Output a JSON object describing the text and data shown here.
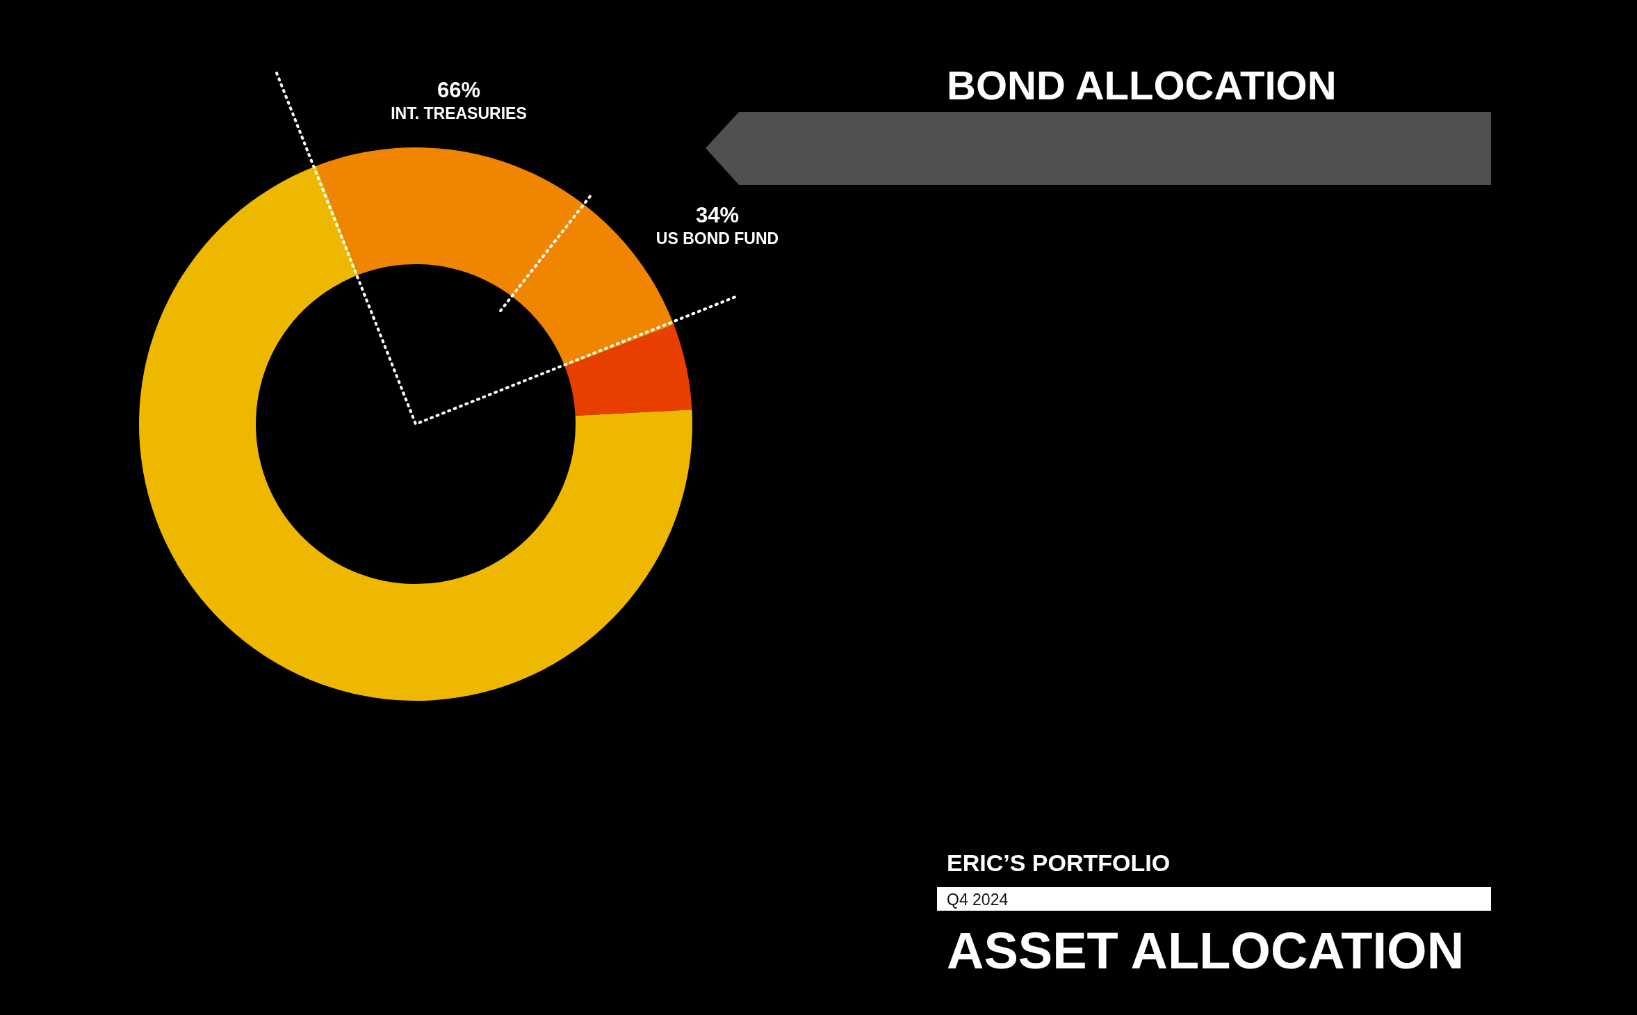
{
  "chart_data": {
    "type": "donut",
    "title": "ASSET ALLOCATION",
    "subtitle": "ERIC’S PORTFOLIO",
    "categories": [
      null,
      null,
      null
    ],
    "values": [
      25,
      5,
      70
    ],
    "colors": [
      "#ef8500",
      "#e83e00",
      "#eeb800"
    ],
    "annotations": [
      "BOND ALLOCATION",
      "Q4 2024",
      "66%",
      "INT. TREASURIES",
      "34%",
      "US BOND FUND"
    ]
  }
}
